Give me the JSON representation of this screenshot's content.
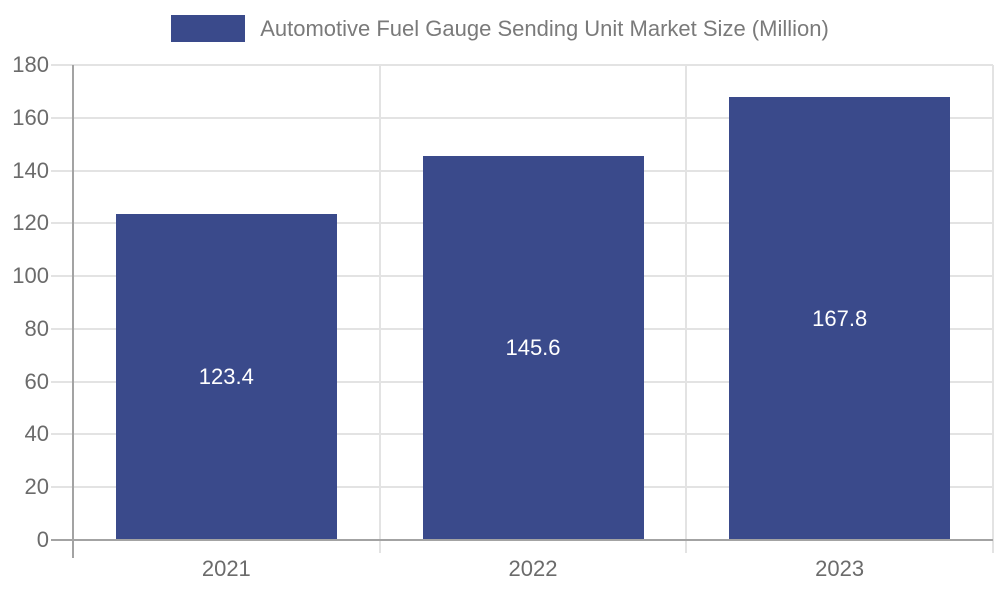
{
  "chart_data": {
    "type": "bar",
    "title": "Automotive Fuel Gauge Sending Unit Market Size (Million)",
    "categories": [
      "2021",
      "2022",
      "2023"
    ],
    "series": [
      {
        "name": "Automotive Fuel Gauge Sending Unit Market Size (Million)",
        "values": [
          123.4,
          145.6,
          167.8
        ]
      }
    ],
    "value_labels": [
      "123.4",
      "145.6",
      "167.8"
    ],
    "ylabel": "",
    "xlabel": "",
    "ylim": [
      0,
      180
    ],
    "ytick_step": 20,
    "yticks": [
      0,
      20,
      40,
      60,
      80,
      100,
      120,
      140,
      160,
      180
    ],
    "grid": true,
    "legend_position": "top-center",
    "colors": {
      "bar": "#3A4A8B",
      "gridline": "#e3e3e3",
      "axis_line": "#a3a3a3",
      "axis_text": "#6b6b6b",
      "legend_text": "#7a7a7a",
      "value_label": "#ffffff",
      "background": "#ffffff"
    }
  }
}
